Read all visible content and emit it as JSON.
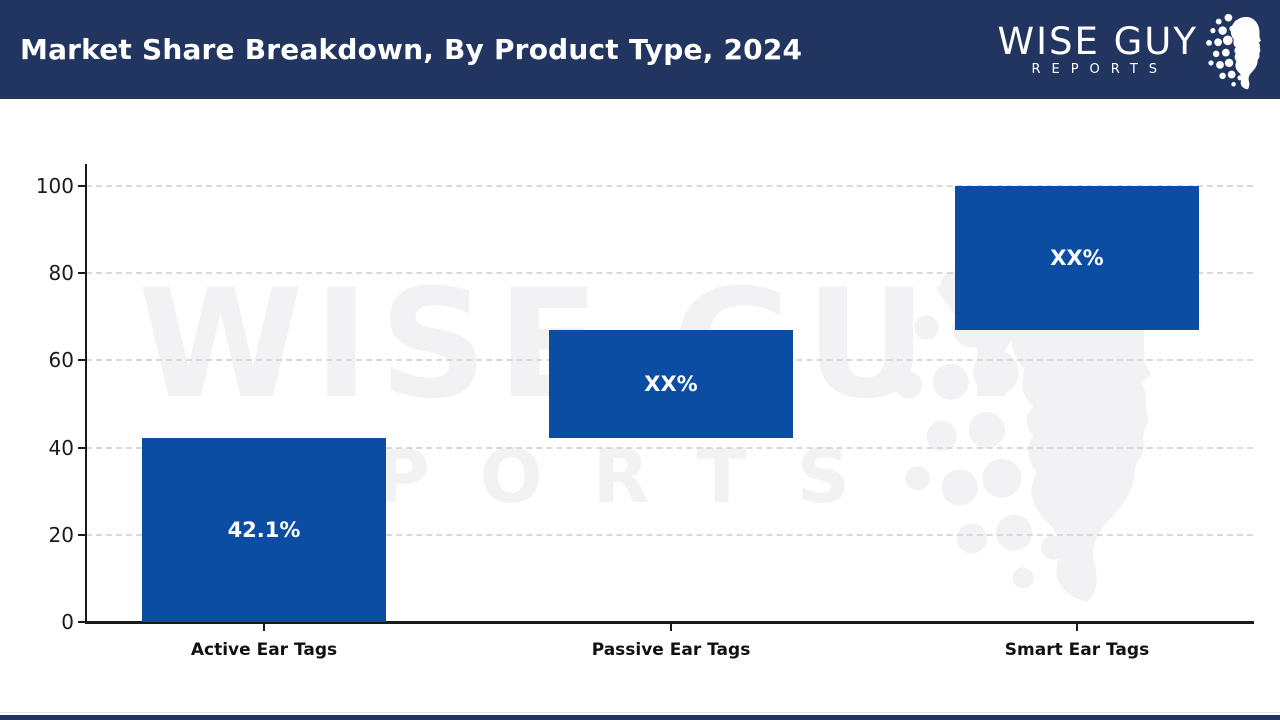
{
  "header": {
    "title": "Market Share Breakdown, By Product Type, 2024",
    "bg_color": "#213560",
    "logo": {
      "line1": "WISE GUY",
      "line2": "REPORTS"
    }
  },
  "watermark": {
    "line1": "WISE GUY",
    "line2": "REPORTS"
  },
  "chart_data": {
    "type": "bar",
    "subtype": "floating-waterfall",
    "title": "Market Share Breakdown, By Product Type, 2024",
    "categories": [
      "Active Ear Tags",
      "Passive Ear Tags",
      "Smart Ear Tags"
    ],
    "segments": [
      {
        "category": "Active Ear Tags",
        "start": 0,
        "end": 42.1,
        "label": "42.1%"
      },
      {
        "category": "Passive Ear Tags",
        "start": 42.1,
        "end": 67,
        "label": "XX%"
      },
      {
        "category": "Smart Ear Tags",
        "start": 67,
        "end": 100,
        "label": "XX%"
      }
    ],
    "xlabel": "",
    "ylabel": "",
    "ylim": [
      0,
      100
    ],
    "yticks": [
      0,
      20,
      40,
      60,
      80,
      100
    ],
    "grid": "horizontal-dashed",
    "legend": "none",
    "bar_color": "#0b4da2",
    "bar_label_color": "#ffffff",
    "axis_color": "#1a1a1a",
    "gridline_color": "#d9d9d9"
  }
}
